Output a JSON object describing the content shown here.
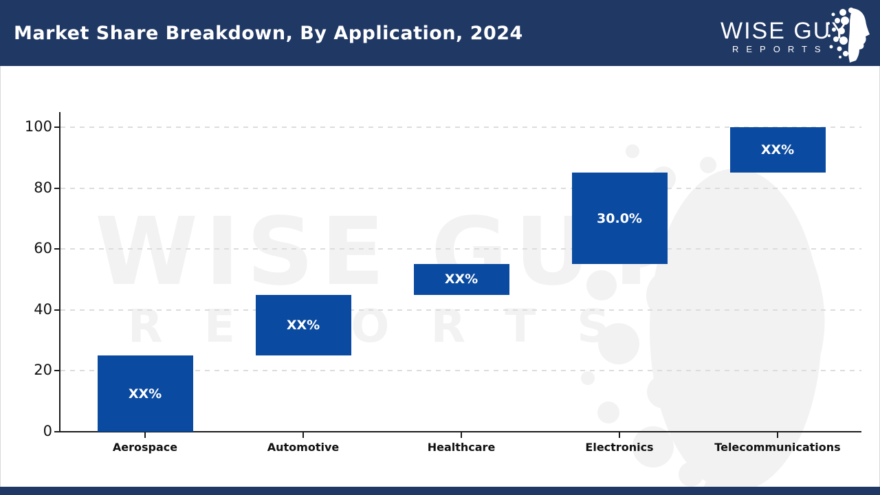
{
  "header": {
    "title": "Market Share Breakdown, By Application, 2024",
    "logo": {
      "line1": "WISE GUY",
      "line2": "REPORTS"
    }
  },
  "watermark": {
    "line1": "WISE GUY",
    "line2": "REPORTS"
  },
  "colors": {
    "header_bg": "#203864",
    "footer_bg": "#203864",
    "bar": "#0a4aa0",
    "bar_label": "#ffffff",
    "grid": "#dcdcdc",
    "axis": "#1a1a1a",
    "watermark": "#f2f2f2"
  },
  "chart_data": {
    "type": "bar",
    "subtype": "waterfall",
    "title": "Market Share Breakdown, By Application, 2024",
    "categories": [
      "Aerospace",
      "Automotive",
      "Healthcare",
      "Electronics",
      "Telecommunications"
    ],
    "segments": [
      {
        "category": "Aerospace",
        "start": 0,
        "end": 25,
        "value": 25,
        "label": "XX%"
      },
      {
        "category": "Automotive",
        "start": 25,
        "end": 45,
        "value": 20,
        "label": "XX%"
      },
      {
        "category": "Healthcare",
        "start": 45,
        "end": 55,
        "value": 10,
        "label": "XX%"
      },
      {
        "category": "Electronics",
        "start": 55,
        "end": 85,
        "value": 30,
        "label": "30.0%"
      },
      {
        "category": "Telecommunications",
        "start": 85,
        "end": 100,
        "value": 15,
        "label": "XX%"
      }
    ],
    "xlabel": "",
    "ylabel": "",
    "yticks": [
      0,
      20,
      40,
      60,
      80,
      100
    ],
    "ylim": [
      0,
      105
    ],
    "grid": "dashed-horizontal",
    "legend": "none"
  }
}
